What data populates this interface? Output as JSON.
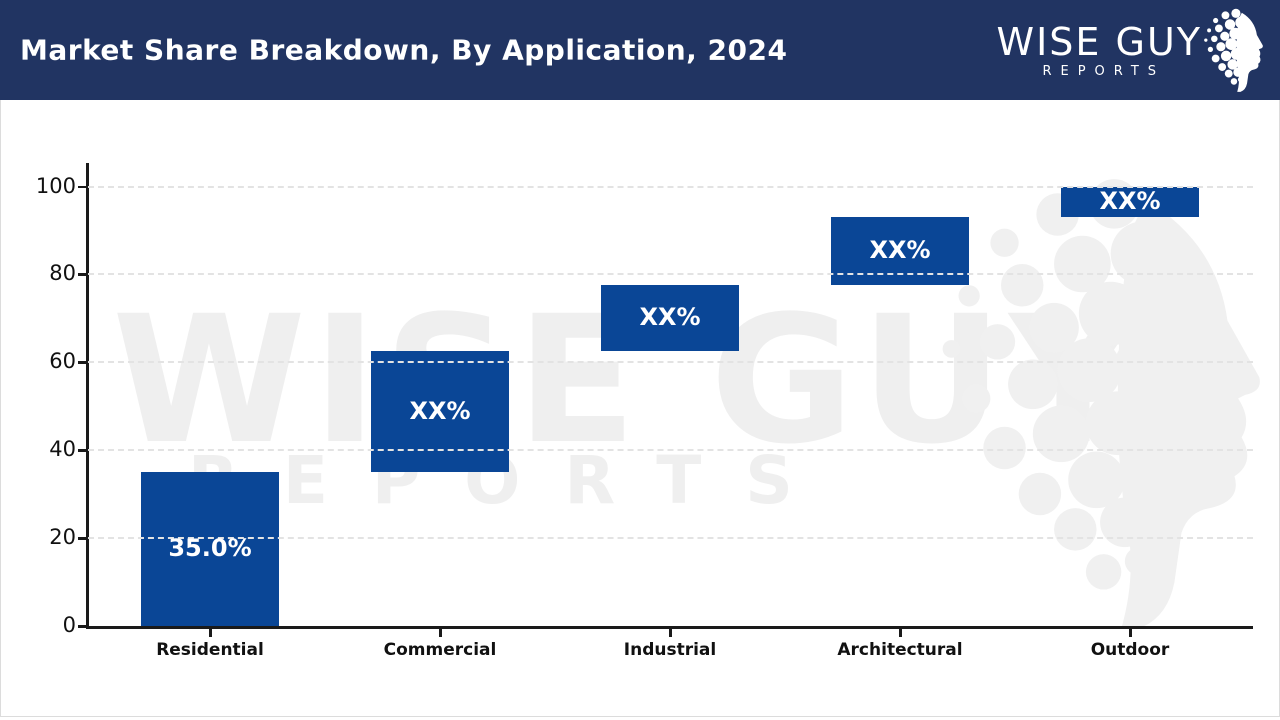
{
  "header": {
    "title": "Market Share Breakdown, By Application, 2024",
    "logo": {
      "line1": "WISE GUY",
      "line2": "REPORTS"
    }
  },
  "watermark": {
    "line1": "WISE GUY",
    "line2": "REPORTS"
  },
  "colors": {
    "header_background": "#213462",
    "bar_blue": "#0a4696",
    "watermark_gray": "#efefef",
    "gridline_gray": "#e3e3e3"
  },
  "chart_data": {
    "type": "bar",
    "subtype": "waterfall",
    "title": "Market Share Breakdown, By Application, 2024",
    "categories": [
      "Residential",
      "Commercial",
      "Industrial",
      "Architectural",
      "Outdoor"
    ],
    "segments": [
      {
        "category": "Residential",
        "start": 0,
        "end": 35,
        "label": "35.0%"
      },
      {
        "category": "Commercial",
        "start": 35,
        "end": 62.5,
        "label": "XX%"
      },
      {
        "category": "Industrial",
        "start": 62.5,
        "end": 77.5,
        "label": "XX%"
      },
      {
        "category": "Architectural",
        "start": 77.5,
        "end": 93,
        "label": "XX%"
      },
      {
        "category": "Outdoor",
        "start": 93,
        "end": 100,
        "label": "XX%"
      }
    ],
    "y_ticks": [
      0,
      20,
      40,
      60,
      80,
      100
    ],
    "ylim": [
      0,
      105
    ],
    "xlabel": "",
    "ylabel": "",
    "grid": "horizontal-dashed-over-bars",
    "legend": "none",
    "bar_color": "#0a4696"
  }
}
